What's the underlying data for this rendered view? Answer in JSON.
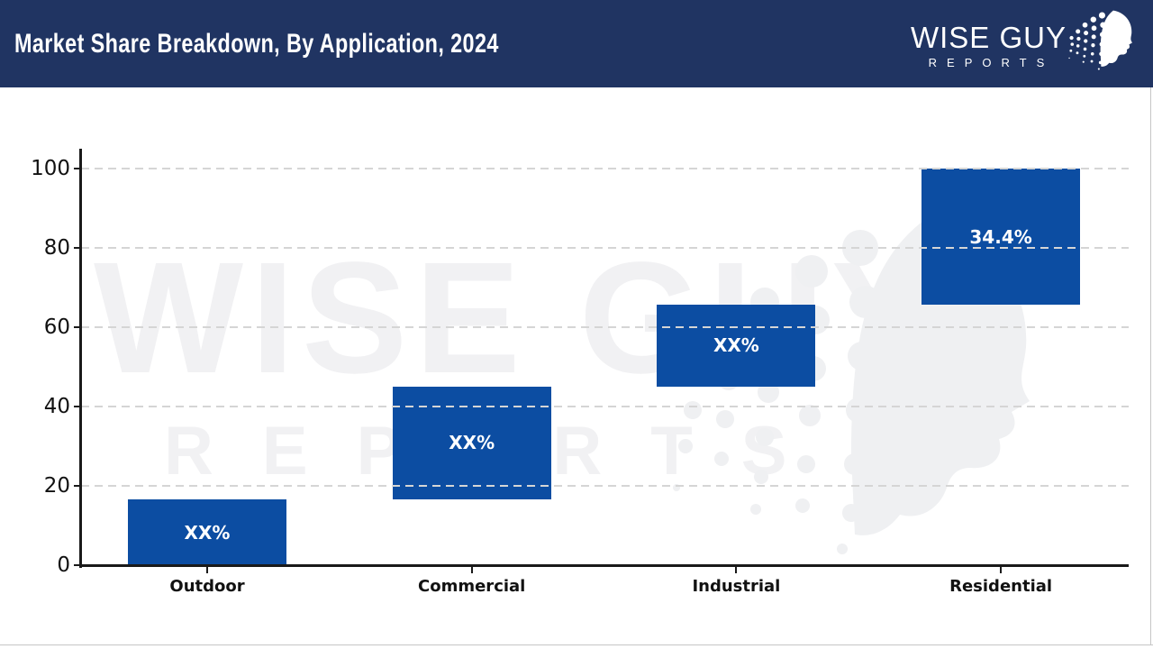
{
  "header": {
    "title": "Market Share Breakdown, By Application, 2024",
    "logo": {
      "line1": "WISE GUY",
      "line2": "REPORTS"
    }
  },
  "watermark": {
    "line1": "WISE GUY",
    "line2": "REPORTS"
  },
  "colors": {
    "header_bg": "#203462",
    "bar": "#0c4da2",
    "bar_label": "#ffffff",
    "grid": "#d5d5d5",
    "axis": "#1a1a1a",
    "watermark": "#f1f1f3"
  },
  "chart_data": {
    "type": "bar",
    "subtype": "waterfall-floating-bars",
    "title": "Market Share Breakdown, By Application, 2024",
    "categories": [
      "Outdoor",
      "Commercial",
      "Industrial",
      "Residential"
    ],
    "segments": [
      {
        "category": "Outdoor",
        "start": 0,
        "end": 16.5,
        "label": "XX%"
      },
      {
        "category": "Commercial",
        "start": 16.5,
        "end": 45.1,
        "label": "XX%"
      },
      {
        "category": "Industrial",
        "start": 45.1,
        "end": 65.6,
        "label": "XX%"
      },
      {
        "category": "Residential",
        "start": 65.6,
        "end": 100,
        "label": "34.4%"
      }
    ],
    "yticks": [
      0,
      20,
      40,
      60,
      80,
      100
    ],
    "ylim": [
      0,
      105
    ],
    "xlabel": "",
    "ylabel": "",
    "grid": "horizontal-dashed, drawn above bars",
    "legend": null,
    "bar_color": "#0c4da2",
    "bar_label_color": "#ffffff"
  }
}
